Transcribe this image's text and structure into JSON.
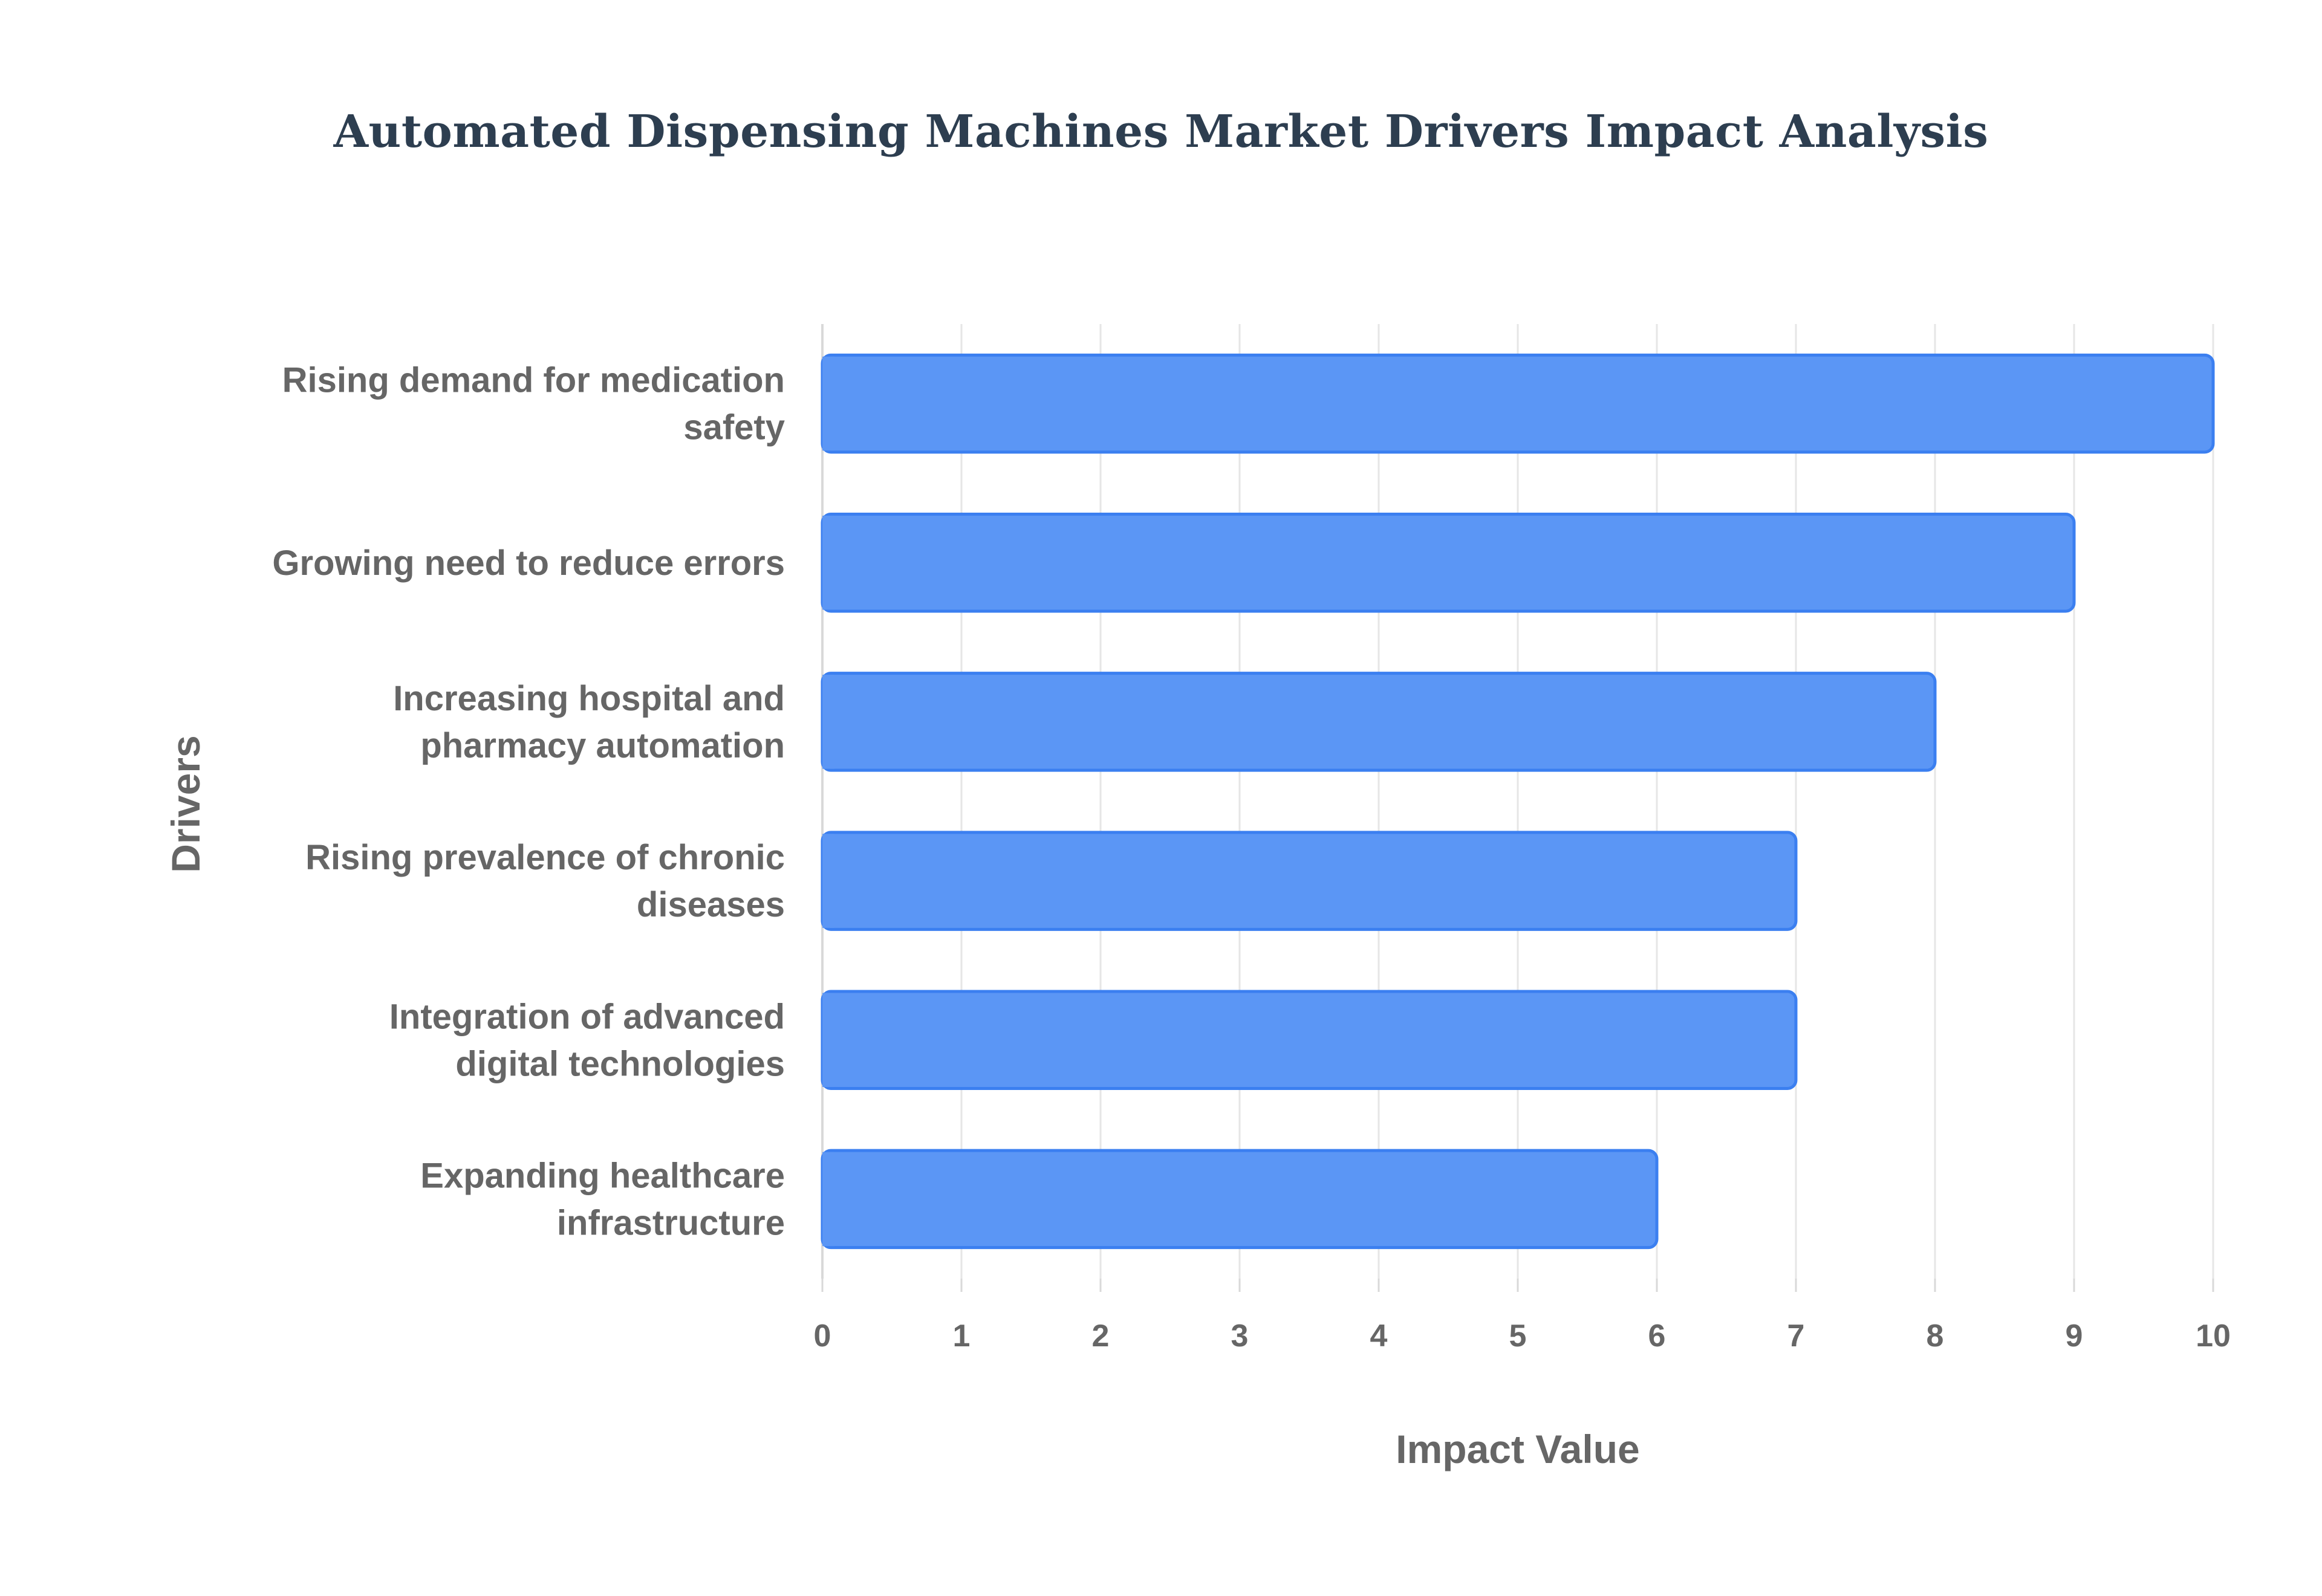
{
  "chart_data": {
    "type": "bar",
    "orientation": "horizontal",
    "title": "Automated Dispensing Machines Market Drivers Impact Analysis",
    "xlabel": "Impact Value",
    "ylabel": "Drivers",
    "categories": [
      [
        "Rising demand for medication",
        "safety"
      ],
      [
        "Growing need to reduce errors"
      ],
      [
        "Increasing hospital and",
        "pharmacy automation"
      ],
      [
        "Rising prevalence of chronic",
        "diseases"
      ],
      [
        "Integration of advanced",
        "digital technologies"
      ],
      [
        "Expanding healthcare",
        "infrastructure"
      ]
    ],
    "values": [
      10,
      9,
      8,
      7,
      7,
      6
    ],
    "xlim": [
      0,
      10
    ],
    "xticks": [
      "0",
      "1",
      "2",
      "3",
      "4",
      "5",
      "6",
      "7",
      "8",
      "9",
      "10"
    ],
    "grid": true,
    "legend": "none",
    "colors": {
      "bar_fill": "#5b96f5",
      "bar_stroke": "#3b7ff0",
      "grid": "#e6e6e6",
      "axis": "#d9d9d9",
      "text": "#666666",
      "title": "#2d3e50"
    }
  }
}
